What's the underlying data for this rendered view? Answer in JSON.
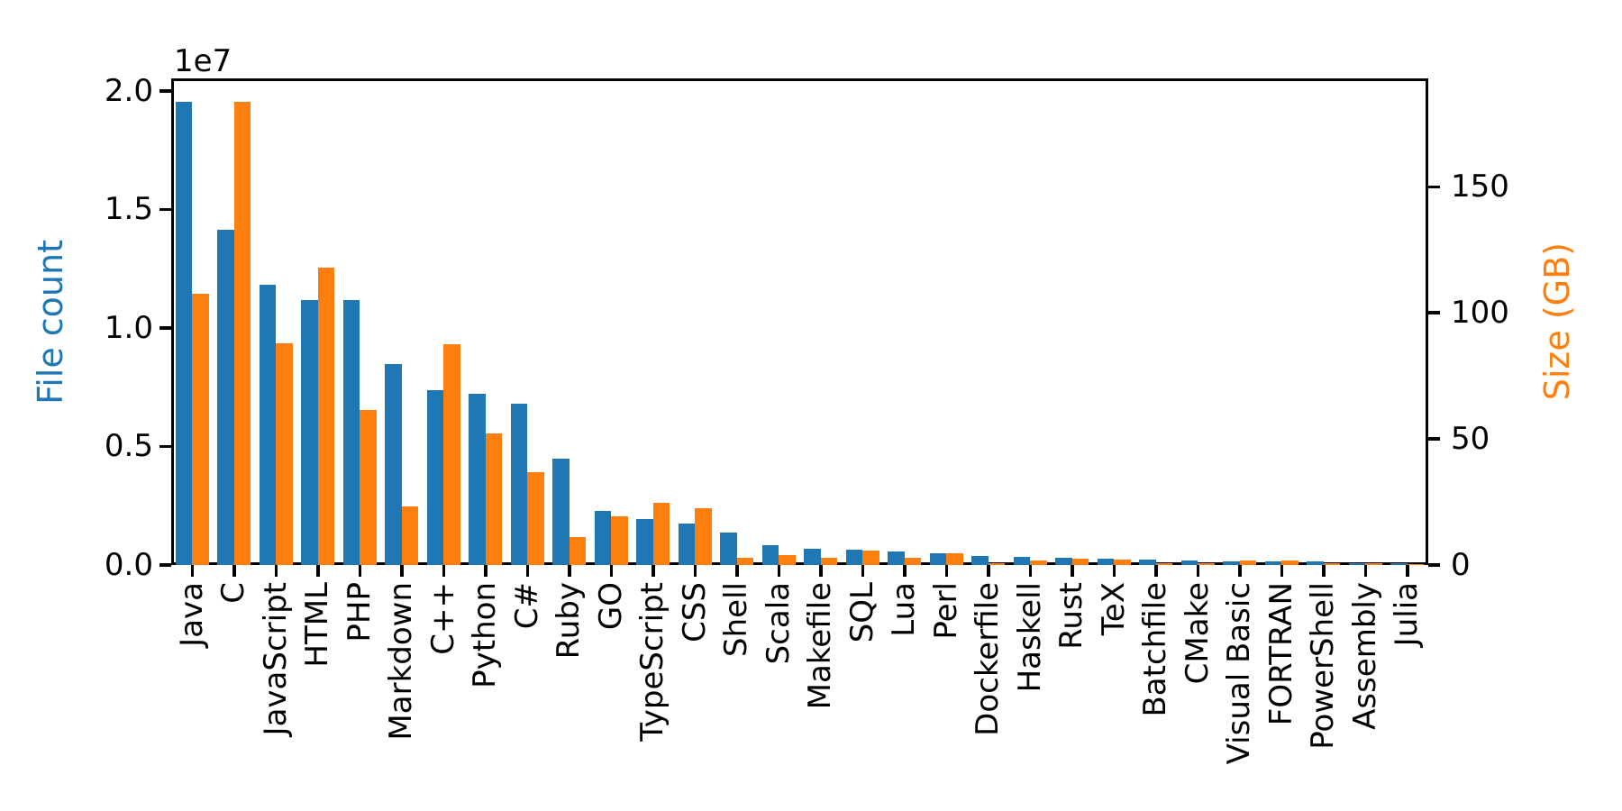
{
  "chart_data": {
    "type": "bar",
    "title": "",
    "categories": [
      "Java",
      "C",
      "JavaScript",
      "HTML",
      "PHP",
      "Markdown",
      "C++",
      "Python",
      "C#",
      "Ruby",
      "GO",
      "TypeScript",
      "CSS",
      "Shell",
      "Scala",
      "Makefile",
      "SQL",
      "Lua",
      "Perl",
      "Dockerfile",
      "Haskell",
      "Rust",
      "TeX",
      "Batchfile",
      "CMake",
      "Visual Basic",
      "FORTRAN",
      "PowerShell",
      "Assembly",
      "Julia"
    ],
    "series": [
      {
        "name": "File count",
        "axis": "left",
        "color": "#1f77b4",
        "values": [
          19548190,
          14143113,
          11839883,
          11178557,
          11177610,
          8464626,
          7380520,
          7226626,
          6811652,
          4473331,
          2265436,
          1940406,
          1734406,
          1385648,
          835755,
          679430,
          656671,
          578554,
          497949,
          366505,
          340623,
          322431,
          251015,
          236945,
          175282,
          155652,
          142038,
          136846,
          82905,
          58317
        ]
      },
      {
        "name": "Size (GB)",
        "axis": "right",
        "color": "#ff7f0e",
        "values": [
          107.7,
          183.83,
          87.82,
          118.12,
          61.41,
          23.09,
          87.73,
          52.03,
          36.83,
          10.95,
          19.28,
          24.59,
          22.67,
          3.01,
          3.87,
          2.92,
          5.67,
          2.81,
          4.7,
          0.71,
          1.85,
          2.68,
          2.15,
          0.7,
          0.54,
          1.91,
          1.62,
          0.69,
          0.78,
          0.29
        ]
      }
    ],
    "axes": {
      "left": {
        "label": "File count",
        "color": "#1f77b4",
        "offset_text": "1e7",
        "tick_labels": [
          "0.0",
          "0.5",
          "1.0",
          "1.5",
          "2.0"
        ],
        "tick_values": [
          0,
          5000000,
          10000000,
          15000000,
          20000000
        ],
        "range": [
          0,
          20525600
        ]
      },
      "right": {
        "label": "Size (GB)",
        "color": "#ff7f0e",
        "tick_labels": [
          "0",
          "50",
          "100",
          "150"
        ],
        "tick_values": [
          0,
          50,
          100,
          150
        ],
        "range": [
          0,
          193.02
        ]
      }
    },
    "bar_group_width": 0.8,
    "grid": false,
    "legend": "none"
  }
}
